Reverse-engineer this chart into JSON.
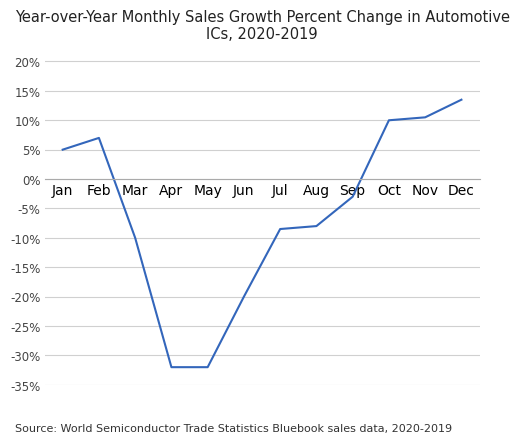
{
  "title": "Year-over-Year Monthly Sales Growth Percent Change in Automotive\nICs, 2020-2019",
  "months": [
    "Jan",
    "Feb",
    "Mar",
    "Apr",
    "May",
    "Jun",
    "Jul",
    "Aug",
    "Sep",
    "Oct",
    "Nov",
    "Dec"
  ],
  "values": [
    5.0,
    7.0,
    -10.0,
    -32.0,
    -32.0,
    -20.0,
    -8.5,
    -8.0,
    -3.0,
    10.0,
    10.5,
    13.5
  ],
  "line_color": "#3366BB",
  "line_width": 1.5,
  "ylim": [
    -35,
    22
  ],
  "yticks": [
    -35,
    -30,
    -25,
    -20,
    -15,
    -10,
    -5,
    0,
    5,
    10,
    15,
    20
  ],
  "ytick_labels": [
    "-35%",
    "-30%",
    "-25%",
    "-20%",
    "-15%",
    "-10%",
    "-5%",
    "0%",
    "5%",
    "10%",
    "15%",
    "20%"
  ],
  "source_text": "Source: World Semiconductor Trade Statistics Bluebook sales data, 2020-2019",
  "background_color": "#ffffff",
  "grid_color": "#d0d0d0",
  "title_fontsize": 10.5,
  "tick_fontsize": 8.5,
  "source_fontsize": 8
}
